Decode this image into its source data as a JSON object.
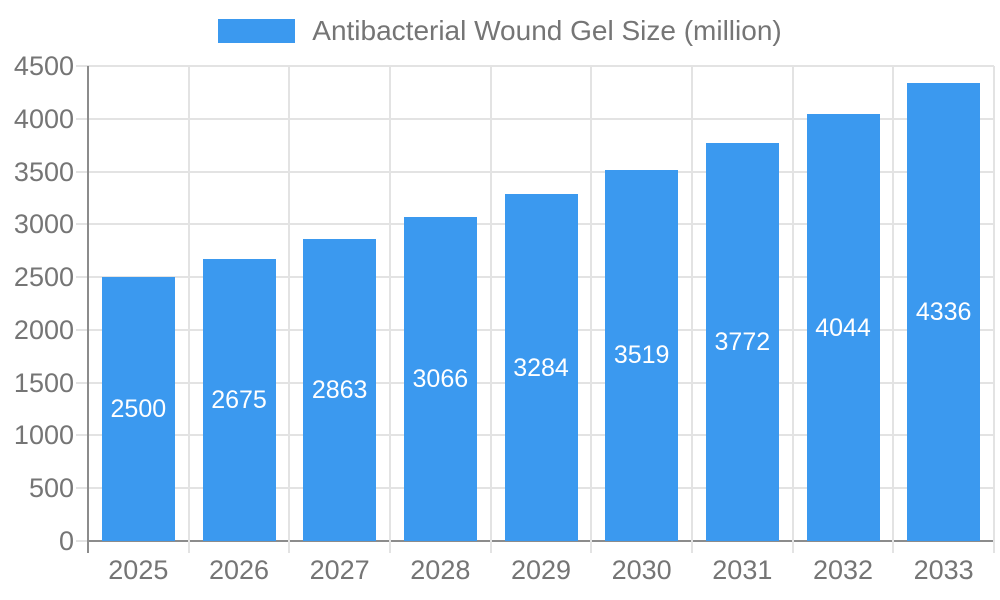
{
  "chart_data": {
    "type": "bar",
    "title": "Antibacterial Wound Gel Size (million)",
    "series_name": "Antibacterial Wound Gel Size (million)",
    "categories": [
      "2025",
      "2026",
      "2027",
      "2028",
      "2029",
      "2030",
      "2031",
      "2032",
      "2033"
    ],
    "values": [
      2500,
      2675,
      2863,
      3066,
      3284,
      3519,
      3772,
      4044,
      4336
    ],
    "bar_labels": [
      "2500",
      "2675",
      "2863",
      "3066",
      "3284",
      "3519",
      "3772",
      "4044",
      "4336"
    ],
    "yticks": [
      0,
      500,
      1000,
      1500,
      2000,
      2500,
      3000,
      3500,
      4000,
      4500
    ],
    "ylim": [
      0,
      4500
    ],
    "xlabel": "",
    "ylabel": "",
    "grid": true,
    "legend_position": "top",
    "colors": {
      "bar": "#3B99EF",
      "bar_label_text": "#FFFFFF",
      "axis_text": "#757575",
      "axis_line": "#8C8C8C",
      "gridline": "#E3E3E3",
      "background": "#FFFFFF"
    }
  }
}
